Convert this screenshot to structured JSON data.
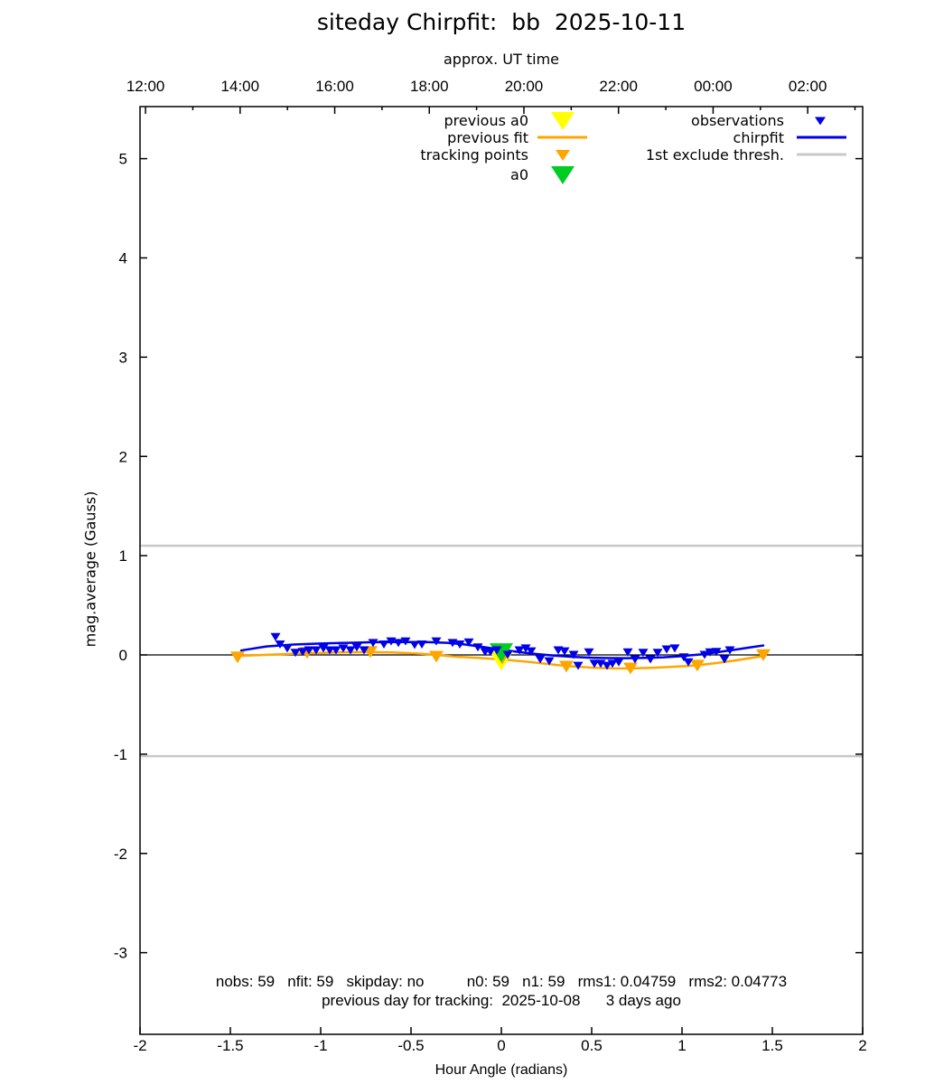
{
  "title": "siteday Chirpfit:  bb  2025-10-11",
  "stats_line1": "nobs: 59   nfit: 59   skipday: no          n0: 59   n1: 59   rms1: 0.04759   rms2: 0.04773",
  "stats_line2": "previous day for tracking:  2025-10-08      3 days ago",
  "chart_data": {
    "type": "scatter",
    "title": "siteday Chirpfit:  bb  2025-10-11",
    "xlabel": "Hour Angle (radians)",
    "x2label": "approx. UT time",
    "ylabel": "mag.average (Gauss)",
    "xlim": [
      -2,
      2
    ],
    "ylim": [
      -3.82,
      5.53
    ],
    "grid": false,
    "x_ticks": [
      -2,
      -1.5,
      -1,
      -0.5,
      0,
      0.5,
      1,
      1.5,
      2
    ],
    "y_ticks": [
      5,
      4,
      3,
      2,
      1,
      0,
      -1,
      -2,
      -3
    ],
    "top_axis": {
      "major": [
        {
          "label": "12:00",
          "ha": -1.9695
        },
        {
          "label": "14:00",
          "ha": -1.4459
        },
        {
          "label": "16:00",
          "ha": -0.9223
        },
        {
          "label": "18:00",
          "ha": -0.3987
        },
        {
          "label": "20:00",
          "ha": 0.1249
        },
        {
          "label": "22:00",
          "ha": 0.6485
        },
        {
          "label": "00:00",
          "ha": 1.1721
        },
        {
          "label": "02:00",
          "ha": 1.6957
        }
      ],
      "minor_ha": [
        -1.7077,
        -1.1841,
        -0.6605,
        -0.1369,
        0.3867,
        0.9103,
        1.4339,
        1.9575
      ]
    },
    "exclude_thresholds": [
      1.1,
      -1.02
    ],
    "colors": {
      "observations": "#0000e8",
      "chirpfit": "#0000e8",
      "previous_fit": "#ffa500",
      "tracking_points": "#ffa500",
      "previous_a0": "#ffff00",
      "a0": "#00cc22",
      "threshold": "#c8c8c8",
      "axis": "#000000"
    },
    "series": [
      {
        "name": "previous fit",
        "kind": "line",
        "color": "#ffa500",
        "points": [
          [
            -1.46,
            -0.01
          ],
          [
            -1.35,
            -0.002
          ],
          [
            -1.2,
            0.008
          ],
          [
            -1.05,
            0.018
          ],
          [
            -0.9,
            0.025
          ],
          [
            -0.75,
            0.028
          ],
          [
            -0.6,
            0.025
          ],
          [
            -0.45,
            0.012
          ],
          [
            -0.36,
            0.0
          ],
          [
            -0.25,
            -0.018
          ],
          [
            -0.1,
            -0.033
          ],
          [
            0.0,
            -0.045
          ],
          [
            0.15,
            -0.07
          ],
          [
            0.25,
            -0.09
          ],
          [
            0.36,
            -0.112
          ],
          [
            0.5,
            -0.128
          ],
          [
            0.62,
            -0.135
          ],
          [
            0.715,
            -0.136
          ],
          [
            0.85,
            -0.128
          ],
          [
            1.0,
            -0.115
          ],
          [
            1.085,
            -0.105
          ],
          [
            1.2,
            -0.08
          ],
          [
            1.3,
            -0.055
          ],
          [
            1.4,
            -0.025
          ],
          [
            1.46,
            -0.008
          ]
        ]
      },
      {
        "name": "chirpfit",
        "kind": "line",
        "color": "#0000e8",
        "points": [
          [
            -1.44,
            0.045
          ],
          [
            -1.3,
            0.085
          ],
          [
            -1.15,
            0.105
          ],
          [
            -1.0,
            0.115
          ],
          [
            -0.85,
            0.122
          ],
          [
            -0.7,
            0.128
          ],
          [
            -0.55,
            0.13
          ],
          [
            -0.4,
            0.128
          ],
          [
            -0.3,
            0.122
          ],
          [
            -0.2,
            0.105
          ],
          [
            -0.1,
            0.08
          ],
          [
            0.0,
            0.052
          ],
          [
            0.1,
            0.028
          ],
          [
            0.2,
            0.008
          ],
          [
            0.3,
            -0.008
          ],
          [
            0.4,
            -0.02
          ],
          [
            0.5,
            -0.028
          ],
          [
            0.6,
            -0.032
          ],
          [
            0.7,
            -0.033
          ],
          [
            0.8,
            -0.03
          ],
          [
            0.9,
            -0.024
          ],
          [
            1.0,
            -0.012
          ],
          [
            1.1,
            0.005
          ],
          [
            1.2,
            0.028
          ],
          [
            1.3,
            0.055
          ],
          [
            1.4,
            0.082
          ],
          [
            1.45,
            0.095
          ]
        ]
      },
      {
        "name": "previous a0",
        "kind": "points",
        "marker": "triangle-down",
        "size": "large",
        "color": "#ffff00",
        "points": [
          [
            0.0,
            -0.062
          ]
        ]
      },
      {
        "name": "tracking points",
        "kind": "points",
        "marker": "triangle-down",
        "size": "medium",
        "color": "#ffa500",
        "points": [
          [
            -1.46,
            -0.025
          ],
          [
            -1.075,
            0.02
          ],
          [
            -0.725,
            0.028
          ],
          [
            -0.36,
            -0.018
          ],
          [
            0.005,
            -0.038
          ],
          [
            0.36,
            -0.118
          ],
          [
            0.715,
            -0.136
          ],
          [
            1.085,
            -0.108
          ],
          [
            1.45,
            -0.002
          ]
        ]
      },
      {
        "name": "a0",
        "kind": "points",
        "marker": "triangle-down",
        "size": "large",
        "color": "#00cc22",
        "points": [
          [
            0.0,
            0.022
          ]
        ]
      },
      {
        "name": "observations",
        "kind": "points",
        "marker": "triangle-down",
        "size": "small",
        "color": "#0000e8",
        "points": [
          [
            -1.25,
            0.18
          ],
          [
            -1.225,
            0.105
          ],
          [
            -1.185,
            0.065
          ],
          [
            -1.14,
            0.02
          ],
          [
            -1.1,
            0.03
          ],
          [
            -1.065,
            0.045
          ],
          [
            -1.025,
            0.045
          ],
          [
            -0.985,
            0.065
          ],
          [
            -0.95,
            0.045
          ],
          [
            -0.915,
            0.045
          ],
          [
            -0.875,
            0.065
          ],
          [
            -0.835,
            0.045
          ],
          [
            -0.8,
            0.075
          ],
          [
            -0.76,
            0.045
          ],
          [
            -0.71,
            0.12
          ],
          [
            -0.65,
            0.105
          ],
          [
            -0.61,
            0.135
          ],
          [
            -0.57,
            0.12
          ],
          [
            -0.53,
            0.135
          ],
          [
            -0.48,
            0.1
          ],
          [
            -0.44,
            0.105
          ],
          [
            -0.36,
            0.135
          ],
          [
            -0.27,
            0.12
          ],
          [
            -0.23,
            0.105
          ],
          [
            -0.18,
            0.125
          ],
          [
            -0.13,
            0.075
          ],
          [
            -0.09,
            0.03
          ],
          [
            -0.06,
            0.03
          ],
          [
            -0.025,
            0.045
          ],
          [
            0.035,
            0.0
          ],
          [
            0.1,
            0.045
          ],
          [
            0.135,
            0.065
          ],
          [
            0.165,
            0.035
          ],
          [
            0.215,
            -0.045
          ],
          [
            0.265,
            -0.065
          ],
          [
            0.315,
            0.045
          ],
          [
            0.35,
            0.035
          ],
          [
            0.4,
            0.0
          ],
          [
            0.425,
            -0.11
          ],
          [
            0.485,
            0.025
          ],
          [
            0.515,
            -0.09
          ],
          [
            0.55,
            -0.09
          ],
          [
            0.585,
            -0.11
          ],
          [
            0.615,
            -0.09
          ],
          [
            0.65,
            -0.075
          ],
          [
            0.7,
            0.025
          ],
          [
            0.74,
            -0.045
          ],
          [
            0.785,
            0.02
          ],
          [
            0.825,
            -0.045
          ],
          [
            0.865,
            0.02
          ],
          [
            0.915,
            0.055
          ],
          [
            0.96,
            0.065
          ],
          [
            1.01,
            -0.025
          ],
          [
            1.035,
            -0.075
          ],
          [
            1.125,
            0.0
          ],
          [
            1.155,
            0.025
          ],
          [
            1.19,
            0.03
          ],
          [
            1.235,
            -0.045
          ],
          [
            1.265,
            0.045
          ]
        ]
      }
    ],
    "legend": {
      "position": "top-inside",
      "left": [
        {
          "label": "previous a0",
          "swatch": "triangle",
          "color": "#ffff00",
          "size": "large"
        },
        {
          "label": "previous fit",
          "swatch": "line",
          "color": "#ffa500"
        },
        {
          "label": "tracking points",
          "swatch": "triangle",
          "color": "#ffa500",
          "size": "medium"
        },
        {
          "label": "a0",
          "swatch": "triangle",
          "color": "#00cc22",
          "size": "large"
        }
      ],
      "right": [
        {
          "label": "observations",
          "swatch": "triangle",
          "color": "#0000e8",
          "size": "small"
        },
        {
          "label": "chirpfit",
          "swatch": "line",
          "color": "#0000e8"
        },
        {
          "label": "1st exclude thresh.",
          "swatch": "line",
          "color": "#c8c8c8"
        }
      ]
    },
    "stats": {
      "nobs": 59,
      "nfit": 59,
      "skipday": "no",
      "n0": 59,
      "n1": 59,
      "rms1": 0.04759,
      "rms2": 0.04773,
      "previous_day_for_tracking": "2025-10-08",
      "days_ago": "3 days ago"
    }
  }
}
